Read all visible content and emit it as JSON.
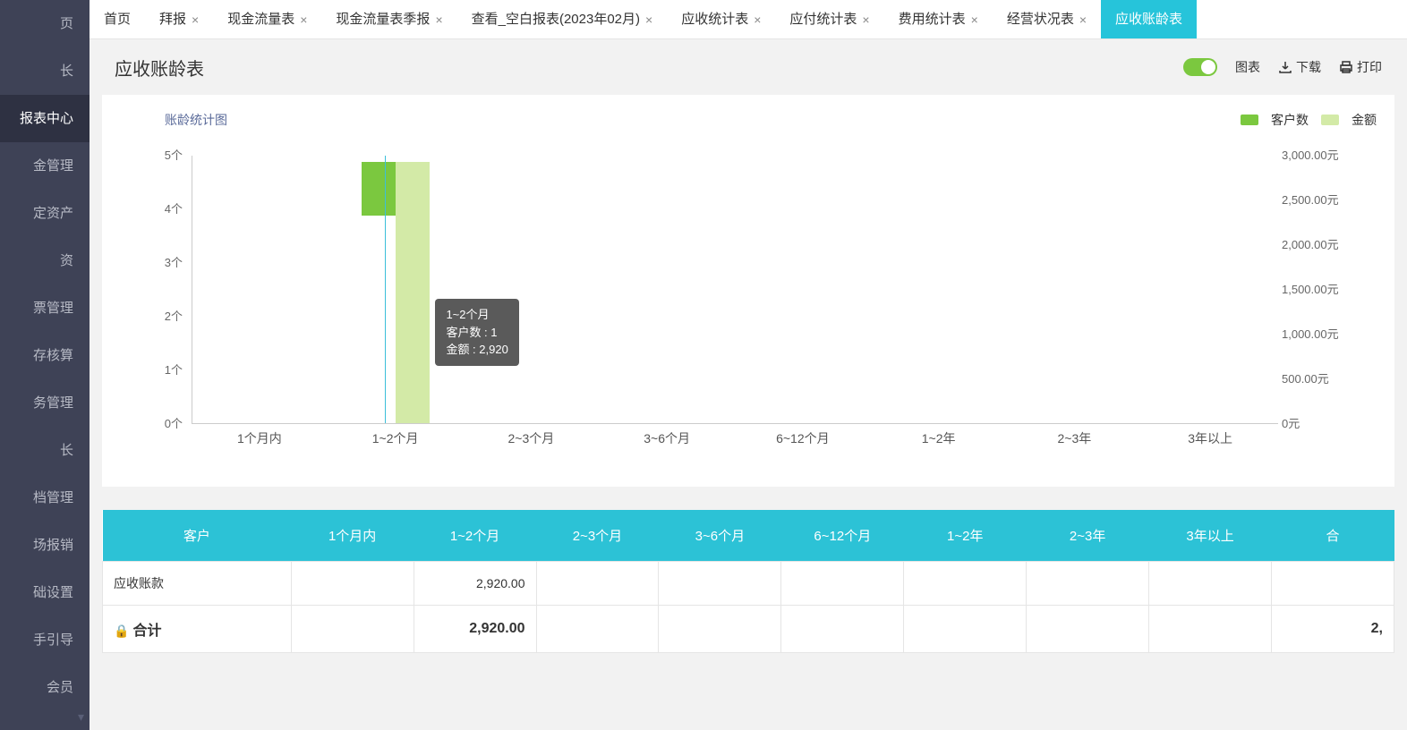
{
  "sidebar": {
    "items": [
      {
        "label": "页"
      },
      {
        "label": "长"
      },
      {
        "label": "报表中心",
        "active": true
      },
      {
        "label": "金管理"
      },
      {
        "label": "定资产"
      },
      {
        "label": "资"
      },
      {
        "label": "票管理"
      },
      {
        "label": "存核算"
      },
      {
        "label": "务管理"
      },
      {
        "label": "长"
      },
      {
        "label": "档管理"
      },
      {
        "label": "场报销"
      },
      {
        "label": "础设置"
      },
      {
        "label": "手引导"
      },
      {
        "label": "会员"
      }
    ]
  },
  "tabs": [
    {
      "label": "首页",
      "closable": false
    },
    {
      "label": "拜报",
      "closable": true
    },
    {
      "label": "现金流量表",
      "closable": true
    },
    {
      "label": "现金流量表季报",
      "closable": true
    },
    {
      "label": "查看_空白报表(2023年02月)",
      "closable": true
    },
    {
      "label": "应收统计表",
      "closable": true
    },
    {
      "label": "应付统计表",
      "closable": true
    },
    {
      "label": "费用统计表",
      "closable": true
    },
    {
      "label": "经营状况表",
      "closable": true
    },
    {
      "label": "应收账龄表",
      "closable": false,
      "active": true
    }
  ],
  "page": {
    "title": "应收账龄表",
    "switch_label": "图表",
    "download": "下载",
    "print": "打印"
  },
  "chart": {
    "title": "账龄统计图",
    "legend": [
      {
        "name": "客户数",
        "color": "#7bc83f"
      },
      {
        "name": "金额",
        "color": "#d3eaa7"
      }
    ],
    "categories": [
      "1个月内",
      "1~2个月",
      "2~3个月",
      "3~6个月",
      "6~12个月",
      "1~2年",
      "2~3年",
      "3年以上"
    ],
    "left_axis": {
      "max": 5,
      "step": 1,
      "suffix": "个"
    },
    "right_axis": {
      "max": 3000,
      "step": 500,
      "suffix": "元",
      "format": "decimal"
    },
    "series": {
      "customers": [
        0,
        1,
        0,
        0,
        0,
        0,
        0,
        0
      ],
      "amount": [
        0,
        2920,
        0,
        0,
        0,
        0,
        0,
        0
      ]
    },
    "bar_colors": [
      "#7bc83f",
      "#d3eaa7"
    ],
    "tooltip": {
      "cat": "1~2个月",
      "lines": [
        "客户数 : 1",
        "金额 : 2,920"
      ]
    }
  },
  "table": {
    "columns": [
      "客户",
      "1个月内",
      "1~2个月",
      "2~3个月",
      "3~6个月",
      "6~12个月",
      "1~2年",
      "2~3年",
      "3年以上",
      "合"
    ],
    "rows": [
      {
        "name": "应收账款",
        "cells": [
          "",
          "2,920.00",
          "",
          "",
          "",
          "",
          "",
          "",
          ""
        ]
      }
    ],
    "total": {
      "label": "合计",
      "cells": [
        "",
        "2,920.00",
        "",
        "",
        "",
        "",
        "",
        "",
        "2,"
      ]
    }
  }
}
